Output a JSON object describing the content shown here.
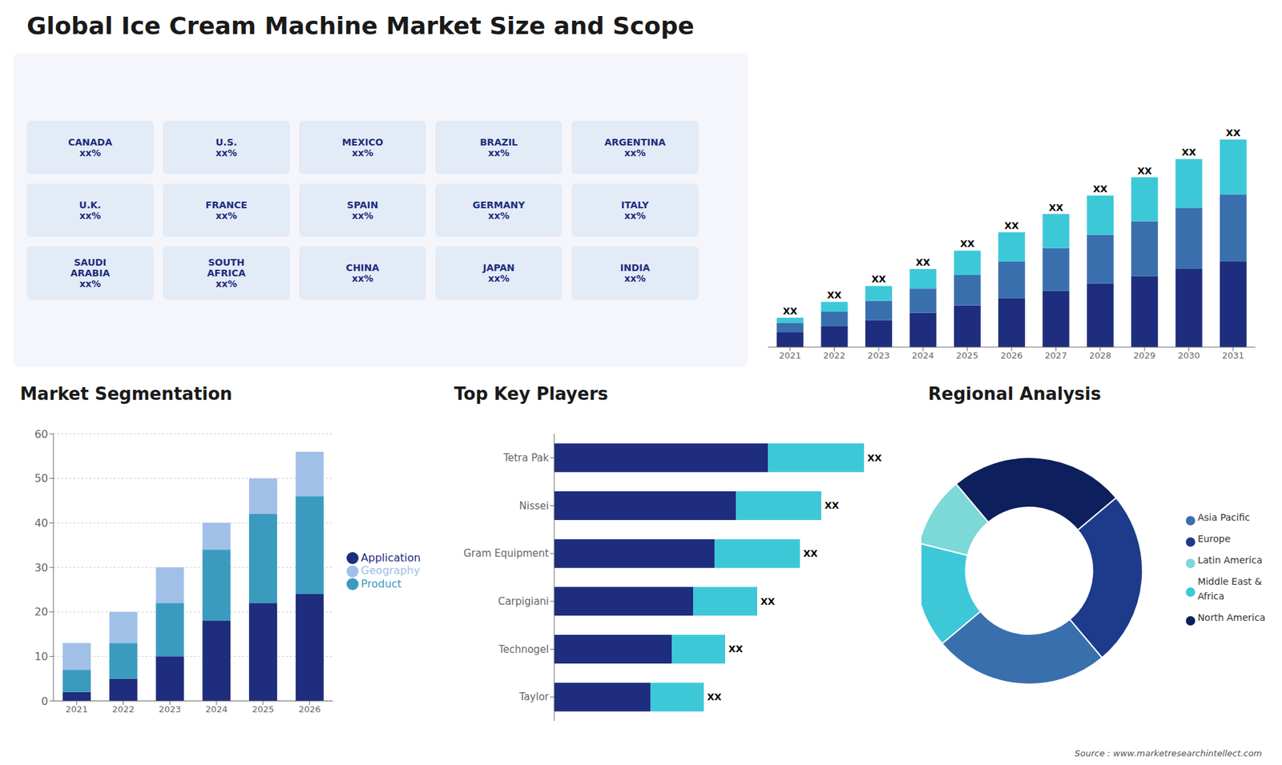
{
  "title": "Global Ice Cream Machine Market Size and Scope",
  "annotations": [
    "Source : www.marketresearchintellect.com"
  ],
  "chart_data": [
    {
      "type": "map",
      "categories": [
        "CANADA",
        "U.S.",
        "MEXICO",
        "BRAZIL",
        "ARGENTINA",
        "U.K.",
        "FRANCE",
        "SPAIN",
        "GERMANY",
        "ITALY",
        "SAUDI\nARABIA",
        "SOUTH\nAFRICA",
        "CHINA",
        "JAPAN",
        "INDIA"
      ],
      "annotations": [
        "xx%",
        "xx%",
        "xx%",
        "xx%",
        "xx%",
        "xx%",
        "xx%",
        "xx%",
        "xx%",
        "xx%",
        "xx%",
        "xx%",
        "xx%",
        "xx%",
        "xx%"
      ]
    },
    {
      "type": "bar",
      "stacked": true,
      "categories": [
        "2021",
        "2022",
        "2023",
        "2024",
        "2025",
        "2026",
        "2027",
        "2028",
        "2029",
        "2030",
        "2031"
      ],
      "series": [
        {
          "color": "#1e2d7d",
          "values": [
            1.2,
            1.7,
            2.2,
            2.8,
            3.4,
            4.0,
            4.6,
            5.2,
            5.8,
            6.4,
            7.0
          ]
        },
        {
          "color": "#3a6fad",
          "values": [
            0.8,
            1.2,
            1.6,
            2.0,
            2.5,
            3.0,
            3.5,
            4.0,
            4.5,
            5.0,
            5.5
          ]
        },
        {
          "color": "#3dc8d8",
          "values": [
            0.4,
            0.8,
            1.2,
            1.6,
            2.0,
            2.4,
            2.8,
            3.2,
            3.6,
            4.0,
            4.5
          ]
        }
      ],
      "ylim": [
        0,
        22.95
      ],
      "tick_labels": "x",
      "annotations": [
        "XX",
        "XX",
        "XX",
        "XX",
        "XX",
        "XX",
        "XX",
        "XX",
        "XX",
        "XX",
        "XX"
      ]
    },
    {
      "type": "bar",
      "title": "Market Segmentation",
      "stacked": true,
      "categories": [
        "2021",
        "2022",
        "2023",
        "2024",
        "2025",
        "2026"
      ],
      "series": [
        {
          "name": "Application",
          "color": "#1e2d7d",
          "values": [
            2,
            5,
            10,
            18,
            22,
            24
          ]
        },
        {
          "name": "Product",
          "color": "#3a9bbf",
          "values": [
            5,
            8,
            12,
            16,
            20,
            22
          ]
        },
        {
          "name": "Geography",
          "color": "#a0c0e8",
          "values": [
            6,
            7,
            8,
            6,
            8,
            10
          ]
        }
      ],
      "ylim": [
        0,
        60
      ],
      "yticks": [
        0,
        10,
        20,
        30,
        40,
        50,
        60
      ],
      "grid": true,
      "legend": "right"
    },
    {
      "type": "bar",
      "title": "Top Key Players",
      "orientation": "horizontal",
      "stacked": true,
      "categories": [
        "Tetra Pak",
        "Nissei",
        "Gram Equipment",
        "Carpigiani",
        "Technogel",
        "Taylor"
      ],
      "series": [
        {
          "color": "#1e2d7d",
          "values": [
            20,
            17,
            15,
            13,
            11,
            9
          ]
        },
        {
          "color": "#3dc8d8",
          "values": [
            9,
            8,
            8,
            6,
            5,
            5
          ]
        }
      ],
      "xlim": [
        0,
        30
      ],
      "tick_labels": "y",
      "annotations": [
        "XX",
        "XX",
        "XX",
        "XX",
        "XX",
        "XX"
      ]
    },
    {
      "type": "donut",
      "title": "Regional Analysis",
      "categories": [
        "Latin America",
        "Middle East &\nAfrica",
        "Asia Pacific",
        "Europe",
        "North America"
      ],
      "values": [
        10,
        15,
        25,
        25,
        25
      ],
      "colors": [
        "#7dd8d8",
        "#3dc8d8",
        "#3a6fad",
        "#1e3a8a",
        "#0d1f5c"
      ],
      "legend": "right"
    }
  ]
}
